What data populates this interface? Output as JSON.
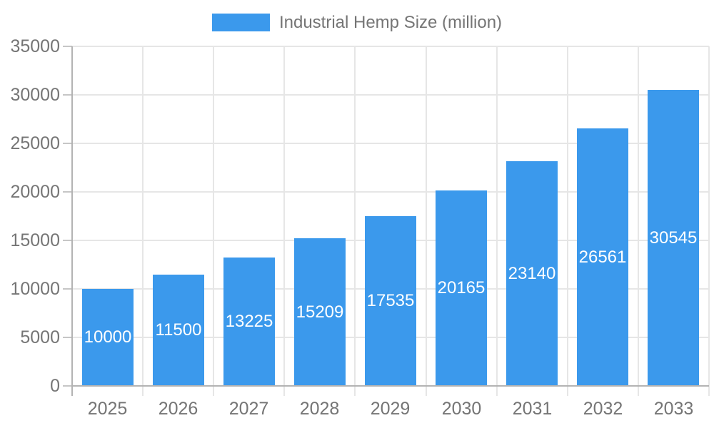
{
  "chart_data": {
    "type": "bar",
    "title": "Industrial Hemp Size (million)",
    "legend": {
      "label": "Industrial Hemp Size (million)",
      "position": "top"
    },
    "categories": [
      "2025",
      "2026",
      "2027",
      "2028",
      "2029",
      "2030",
      "2031",
      "2032",
      "2033"
    ],
    "values": [
      10000,
      11500,
      13225,
      15209,
      17535,
      20165,
      23140,
      26561,
      30545
    ],
    "bar_labels": [
      "10000",
      "11500",
      "13225",
      "15209",
      "17535",
      "20165",
      "23140",
      "26561",
      "30545"
    ],
    "xlabel": "",
    "ylabel": "",
    "ylim": [
      0,
      35000
    ],
    "ytick_step": 5000,
    "ytick_labels": [
      "0",
      "5000",
      "10000",
      "15000",
      "20000",
      "25000",
      "30000",
      "35000"
    ],
    "grid": true,
    "colors": {
      "bar": "#3B99EC",
      "bar_label_text": "#FFFFFF",
      "axis_text": "#757575",
      "gridline": "#E6E6E6",
      "axis_line": "#B3B3B3",
      "tick": "#C6C6C6",
      "background": "#FFFFFF"
    }
  }
}
